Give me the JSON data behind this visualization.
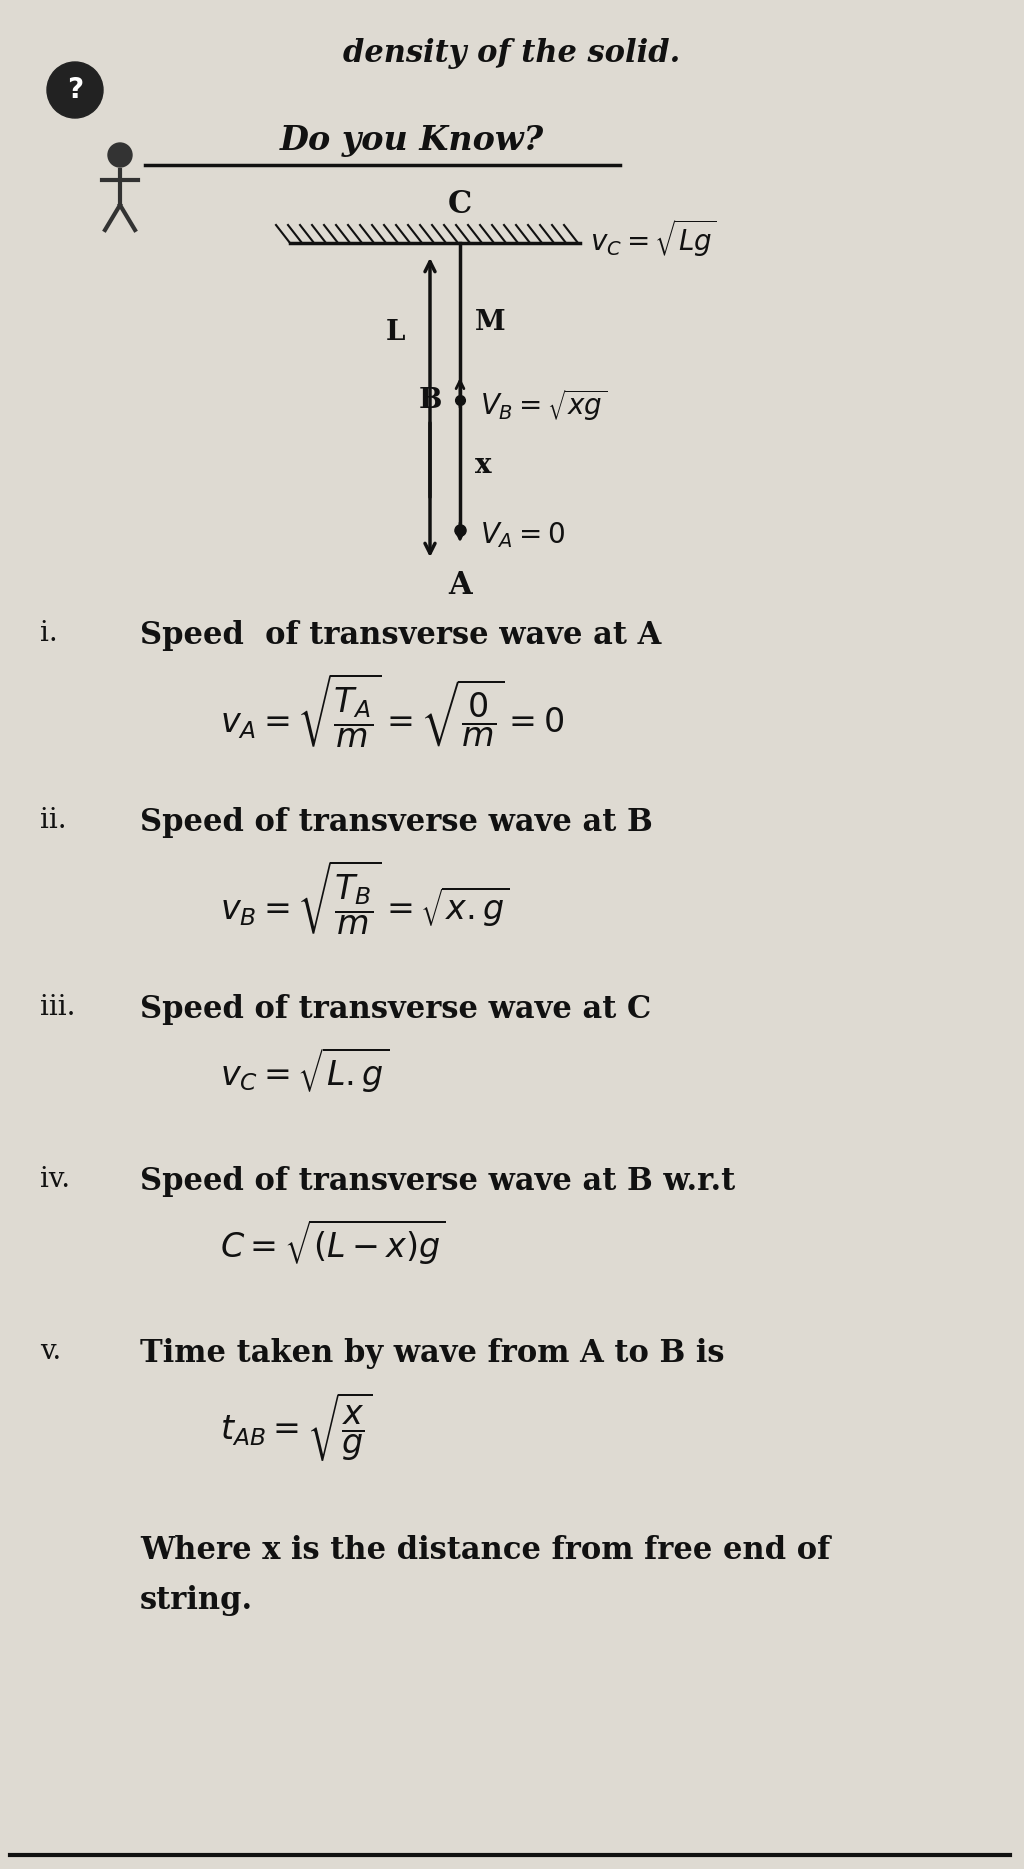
{
  "bg_color": "#c8c4bc",
  "page_color": "#dedad2",
  "text_color": "#111111",
  "title_top": "density of the solid.",
  "do_you_know": "Do you Know?",
  "items": [
    {
      "num": "i.",
      "label": "Speed  of transverse wave at A",
      "formula": "$v_A = \\sqrt{\\dfrac{T_A}{m}} = \\sqrt{\\dfrac{0}{m}} = 0$"
    },
    {
      "num": "ii.",
      "label": "Speed of transverse wave at B",
      "formula": "$v_B = \\sqrt{\\dfrac{T_B}{m}} = \\sqrt{x.g}$"
    },
    {
      "num": "iii.",
      "label": "Speed of transverse wave at C",
      "formula": "$v_C = \\sqrt{L.g}$"
    },
    {
      "num": "iv.",
      "label": "Speed of transverse wave at B w.r.t",
      "formula": "$C = \\sqrt{(L - x)g}$"
    },
    {
      "num": "v.",
      "label": "Time taken by wave from A to B is",
      "formula": "$t_{AB} = \\sqrt{\\dfrac{x}{g}}$"
    }
  ],
  "footer_line1": "Where x is the distance from free end of",
  "footer_line2": "string."
}
